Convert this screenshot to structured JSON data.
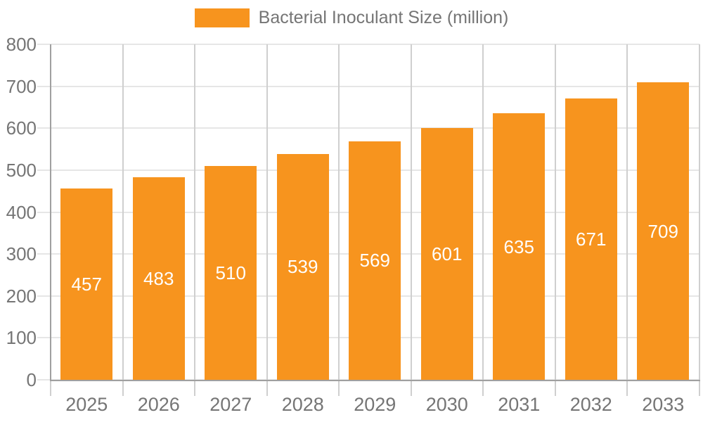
{
  "legend": {
    "label": "Bacterial Inoculant Size (million)"
  },
  "chart_data": {
    "type": "bar",
    "title": "Bacterial Inoculant Size (million)",
    "categories": [
      "2025",
      "2026",
      "2027",
      "2028",
      "2029",
      "2030",
      "2031",
      "2032",
      "2033"
    ],
    "series": [
      {
        "name": "Bacterial Inoculant Size (million)",
        "values": [
          457,
          483,
          510,
          539,
          569,
          601,
          635,
          671,
          709
        ]
      }
    ],
    "value_labels": [
      "457",
      "483",
      "510",
      "539",
      "569",
      "601",
      "635",
      "671",
      "709"
    ],
    "xlabel": "",
    "ylabel": "",
    "ylim": [
      0,
      800
    ],
    "ytick_step": 100,
    "ytick_labels": [
      "0",
      "100",
      "200",
      "300",
      "400",
      "500",
      "600",
      "700",
      "800"
    ],
    "grid": true,
    "legend_position": "top-center",
    "colors": {
      "bar": "#f7941e",
      "value_label": "#ffffff",
      "tick_text": "#757575",
      "legend_text": "#757575",
      "axis_line": "#a0a0a0",
      "gridline_h": "#e6e6e6",
      "gridline_v": "#cfcfcf",
      "tick_mark": "#cfcfcf",
      "background": "#ffffff"
    }
  }
}
